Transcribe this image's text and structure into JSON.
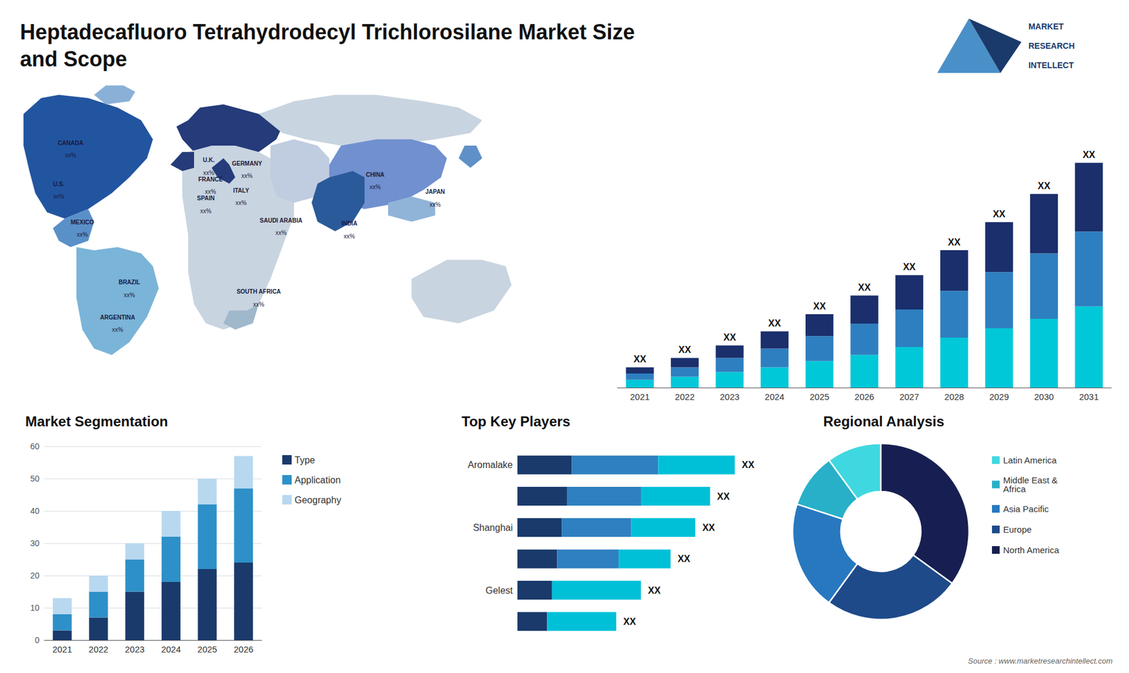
{
  "chart_data": [
    {
      "type": "text",
      "title": "Heptadecafluoro Tetrahydrodecyl Trichlorosilane Market Size\nand Scope",
      "annotations": [
        "MARKET",
        "RESEARCH",
        "INTELLECT",
        "Source : www.marketresearchintellect.com"
      ]
    },
    {
      "type": "map",
      "categories": [
        "CANADA",
        "U.S.",
        "MEXICO",
        "BRAZIL",
        "ARGENTINA",
        "U.K.",
        "FRANCE",
        "SPAIN",
        "GERMANY",
        "ITALY",
        "SAUDI ARABIA",
        "SOUTH AFRICA",
        "CHINA",
        "INDIA",
        "JAPAN"
      ],
      "annotations": [
        "xx%",
        "xx%",
        "xx%",
        "xx%",
        "xx%",
        "xx%",
        "xx%",
        "xx%",
        "xx%",
        "xx%",
        "xx%",
        "xx%",
        "xx%",
        "xx%",
        "xx%"
      ]
    },
    {
      "type": "bar",
      "stacked": true,
      "categories": [
        "2021",
        "2022",
        "2023",
        "2024",
        "2025",
        "2026",
        "2027",
        "2028",
        "2029",
        "2030",
        "2031"
      ],
      "series": [
        {
          "color": "#00c8d8",
          "values": [
            2.5,
            3.5,
            5,
            6.5,
            8.5,
            10.5,
            13,
            16,
            19,
            22,
            26
          ]
        },
        {
          "color": "#2e7fc0",
          "values": [
            2,
            3,
            4.5,
            6,
            8,
            10,
            12,
            15,
            18,
            21,
            24
          ]
        },
        {
          "color": "#1a2f6b",
          "values": [
            2,
            3,
            4,
            5.5,
            7,
            9,
            11,
            13,
            16,
            19,
            22
          ]
        }
      ],
      "annotations": [
        "XX",
        "XX",
        "XX",
        "XX",
        "XX",
        "XX",
        "XX",
        "XX",
        "XX",
        "XX",
        "XX"
      ],
      "ylim": [
        0,
        92.16
      ],
      "tick_labels": "x",
      "grid": false
    },
    {
      "type": "bar",
      "stacked": true,
      "title": "Market Segmentation",
      "categories": [
        "2021",
        "2022",
        "2023",
        "2024",
        "2025",
        "2026"
      ],
      "series": [
        {
          "name": "Type",
          "color": "#1a3a6b",
          "values": [
            3,
            7,
            15,
            18,
            22,
            24
          ]
        },
        {
          "name": "Application",
          "color": "#2e90c8",
          "values": [
            5,
            8,
            10,
            14,
            20,
            23
          ]
        },
        {
          "name": "Geography",
          "color": "#b8d8f0",
          "values": [
            5,
            5,
            5,
            8,
            8,
            10
          ]
        }
      ],
      "ylim": [
        0,
        60
      ],
      "yticks": [
        0,
        10,
        20,
        30,
        40,
        50,
        60
      ],
      "grid": true,
      "legend": "right"
    },
    {
      "type": "bar",
      "stacked": true,
      "orientation": "horizontal",
      "title": "Top Key Players",
      "categories": [
        "Aromalake",
        null,
        "Shanghai",
        null,
        "Gelest",
        null
      ],
      "series": [
        {
          "color": "#1a3a6b",
          "values": [
            0.22,
            0.2,
            0.18,
            0.16,
            0.14,
            0.12
          ]
        },
        {
          "color": "#2e80c0",
          "values": [
            0.35,
            0.3,
            0.28,
            0.25,
            0.0,
            0.0
          ]
        },
        {
          "color": "#00c0d8",
          "values": [
            0.31,
            0.28,
            0.26,
            0.21,
            0.36,
            0.28
          ]
        }
      ],
      "annotations": [
        "XX",
        "XX",
        "XX",
        "XX",
        "XX",
        "XX"
      ],
      "xlim": [
        0,
        1
      ],
      "tick_labels": "y",
      "grid": false
    },
    {
      "type": "pie",
      "title": "Regional Analysis",
      "categories": [
        "Latin America",
        "Middle East &\nAfrica",
        "Asia Pacific",
        "Europe",
        "North America"
      ],
      "values": [
        0.1,
        0.1,
        0.2,
        0.25,
        0.35
      ],
      "colors": [
        "#40d8e0",
        "#28b0c8",
        "#2878c0",
        "#1e4a8a",
        "#171f52"
      ],
      "legend": "right"
    }
  ]
}
